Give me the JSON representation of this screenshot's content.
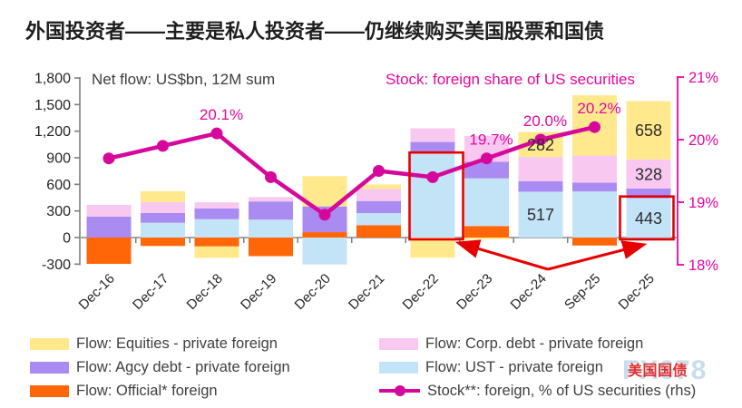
{
  "title": "外国投资者——主要是私人投资者——仍继续购买美国股票和国债",
  "chart_data": {
    "type": "bar",
    "subtype": "stacked-bars-with-line-overlay",
    "categories": [
      "Dec-16",
      "Dec-17",
      "Dec-18",
      "Dec-19",
      "Dec-20",
      "Dec-21",
      "Dec-22",
      "Dec-23",
      "Dec-24",
      "Sep-25",
      "Dec-25"
    ],
    "series": [
      {
        "name": "Flow: Official* foreign",
        "color": "#ff6608",
        "values": [
          -297,
          -95,
          -100,
          -210,
          61,
          140,
          0,
          130,
          0,
          -90,
          0
        ]
      },
      {
        "name": "Flow: UST - private foreign",
        "color": "#c3e3f7",
        "values": [
          0,
          167,
          208,
          202,
          -304,
          136,
          949,
          538,
          517,
          520,
          443
        ]
      },
      {
        "name": "Flow: Agcy debt - private foreign",
        "color": "#a98bf2",
        "values": [
          235,
          110,
          120,
          205,
          290,
          136,
          129,
          188,
          120,
          100,
          110
        ]
      },
      {
        "name": "Flow: Corp. debt - private foreign",
        "color": "#f8c8f0",
        "values": [
          133,
          123,
          69,
          50,
          0,
          137,
          154,
          290,
          272,
          305,
          328
        ]
      },
      {
        "name": "Flow: Equities - private foreign",
        "color": "#ffe98c",
        "values": [
          0,
          123,
          -129,
          0,
          342,
          50,
          -227,
          -20,
          282,
          680,
          658
        ]
      }
    ],
    "line_series": {
      "name": "Stock**: foreign, % of US securities (rhs)",
      "color": "#d6079b",
      "axis": "right",
      "values": [
        19.7,
        19.9,
        20.1,
        19.4,
        18.8,
        19.5,
        19.4,
        19.7,
        20.0,
        20.2,
        null
      ]
    },
    "left_axis": {
      "title": "Net flow: US$bn, 12M sum",
      "ticks": [
        1800,
        1500,
        1200,
        900,
        600,
        300,
        0,
        -300
      ],
      "tick_labels": [
        "1,800",
        "1,500",
        "1,200",
        "900",
        "600",
        "300",
        "0",
        "-300"
      ],
      "range": [
        -300,
        1800
      ]
    },
    "right_axis": {
      "title": "Stock: foreign share of US securities",
      "ticks": [
        21,
        20,
        19,
        18
      ],
      "tick_labels": [
        "21%",
        "20%",
        "19%",
        "18%"
      ],
      "range": [
        18,
        21
      ]
    },
    "point_labels": [
      {
        "category": "Dec-18",
        "text": "20.1%"
      },
      {
        "category": "Dec-23",
        "text": "19.7%"
      },
      {
        "category": "Dec-24",
        "text": "20.0%"
      },
      {
        "category": "Sep-25",
        "text": "20.2%"
      }
    ],
    "bar_value_labels": [
      {
        "category": "Dec-24",
        "series": "Flow: Equities - private foreign",
        "text": "282"
      },
      {
        "category": "Dec-24",
        "series": "Flow: UST - private foreign",
        "text": "517"
      },
      {
        "category": "Dec-25",
        "series": "Flow: Equities - private foreign",
        "text": "658"
      },
      {
        "category": "Dec-25",
        "series": "Flow: Corp. debt - private foreign",
        "text": "328"
      },
      {
        "category": "Dec-25",
        "series": "Flow: UST - private foreign",
        "text": "443"
      }
    ],
    "highlight_boxes": [
      {
        "category": "Dec-22",
        "series": "Flow: UST - private foreign",
        "pad": [
          1,
          1,
          9,
          2
        ]
      },
      {
        "category": "Dec-25",
        "series": "Flow: UST - private foreign",
        "pad": [
          7,
          2,
          3,
          2
        ]
      }
    ],
    "arrows": [
      {
        "from": [
          604,
          297
        ],
        "to": [
          506,
          268
        ]
      },
      {
        "from": [
          604,
          297
        ],
        "to": [
          709,
          270
        ]
      }
    ],
    "annotation_color": "#e60000",
    "grid": false,
    "legend_position": "bottom"
  },
  "legend": {
    "col1": [
      {
        "label": "Flow: Equities - private foreign",
        "color": "#ffe98c",
        "type": "box"
      },
      {
        "label": "Flow: Agcy debt - private foreign",
        "color": "#a98bf2",
        "type": "box"
      },
      {
        "label": "Flow: Official* foreign",
        "color": "#ff6608",
        "type": "box"
      }
    ],
    "col2": [
      {
        "label": "Flow: Corp. debt - private foreign",
        "color": "#f8c8f0",
        "type": "box"
      },
      {
        "label": "Flow: UST - private foreign",
        "color": "#c3e3f7",
        "type": "box"
      },
      {
        "label": "Stock**: foreign, % of US securities (rhs)",
        "color": "#d6079b",
        "type": "line"
      }
    ]
  },
  "watermark": {
    "back_text": "FX678",
    "front_text": "美国国债"
  }
}
